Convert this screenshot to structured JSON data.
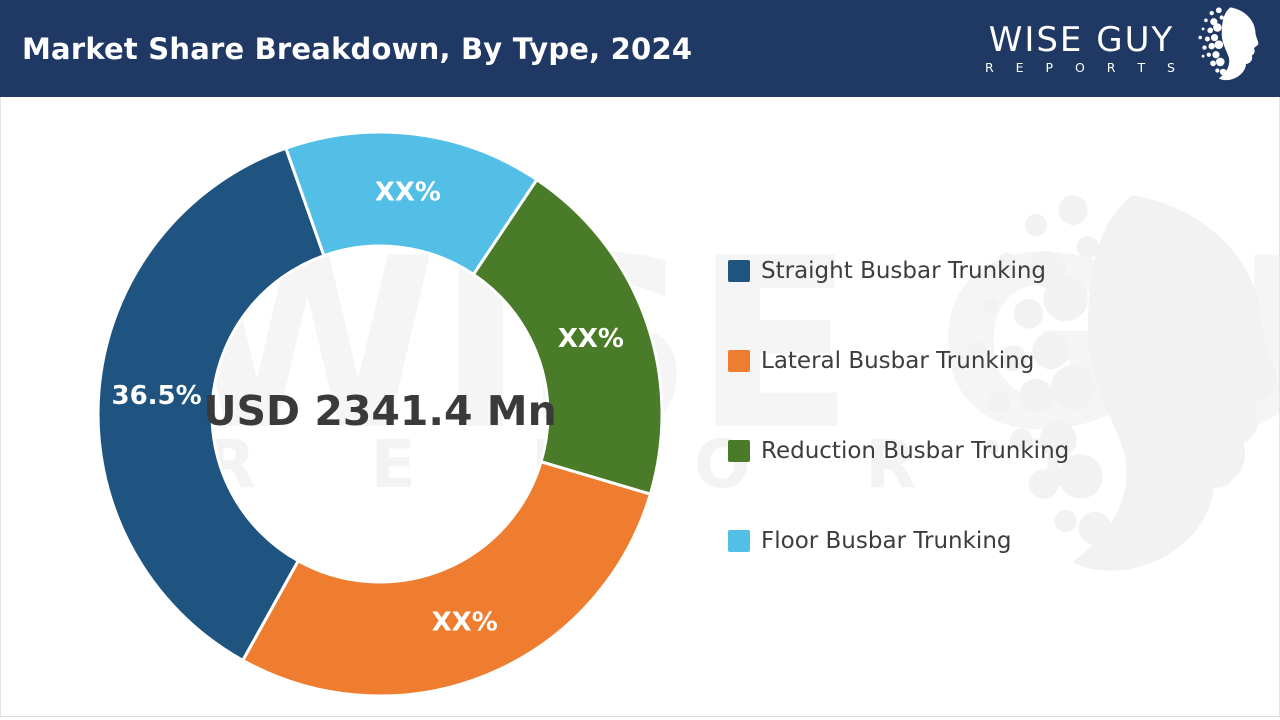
{
  "header": {
    "title": "Market Share Breakdown, By Type, 2024",
    "brand": {
      "line1": "WISE GUY",
      "line2": "R E P O R T S"
    }
  },
  "chart_data": {
    "type": "pie",
    "subtype": "donut",
    "title": "Market Share Breakdown, By Type, 2024",
    "center_label": "USD 2341.4 Mn",
    "start_angle_deg": 109.5,
    "direction": "counterclockwise",
    "center": [
      380,
      414
    ],
    "outer_radius": 282,
    "inner_radius": 168,
    "label_radius_ratio": 0.795,
    "legend_position": "right",
    "segments": [
      {
        "name": "Straight Busbar Trunking",
        "value": 36.5,
        "display": "36.5%",
        "color": "#1F5480"
      },
      {
        "name": "Lateral Busbar Trunking",
        "value": 28.5,
        "display": "XX%",
        "color": "#EE7D2F"
      },
      {
        "name": "Reduction Busbar Trunking",
        "value": 20.2,
        "display": "XX%",
        "color": "#4A7B28"
      },
      {
        "name": "Floor Busbar Trunking",
        "value": 14.8,
        "display": "XX%",
        "color": "#53BEE6"
      }
    ]
  },
  "legend": {
    "items": [
      {
        "label": "Straight Busbar Trunking",
        "color": "#1F5480"
      },
      {
        "label": "Lateral Busbar Trunking",
        "color": "#EE7D2F"
      },
      {
        "label": "Reduction Busbar Trunking",
        "color": "#4A7B28"
      },
      {
        "label": "Floor Busbar Trunking",
        "color": "#53BEE6"
      }
    ]
  },
  "watermark": {
    "line1": "WISE GUY",
    "line2": "R E P O R T S"
  },
  "colors": {
    "header_bg": "#1F3864",
    "title_text": "#FFFFFF",
    "center_text": "#3A3A3A",
    "legend_text": "#3D3D3D",
    "slice_gap": "#FFFFFF",
    "watermark": "#F4F4F4",
    "edge_line": "#DBDBDB"
  }
}
